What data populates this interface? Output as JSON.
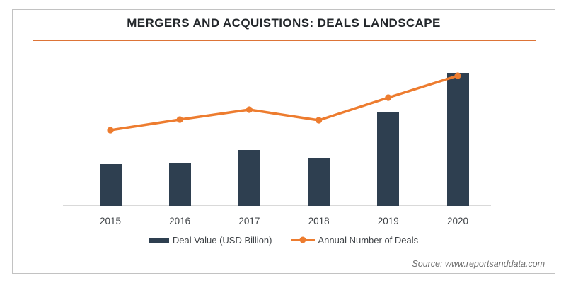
{
  "card": {
    "title": "MERGERS AND ACQUISTIONS: DEALS LANDSCAPE",
    "source": "Source: www.reportsanddata.com"
  },
  "chart_data": {
    "type": "combo",
    "title": "MERGERS AND ACQUISTIONS: DEALS LANDSCAPE",
    "categories": [
      "2015",
      "2016",
      "2017",
      "2018",
      "2019",
      "2020"
    ],
    "series": [
      {
        "name": "Deal Value (USD Billion)",
        "type": "bar",
        "values": [
          59,
          60,
          79,
          67,
          133,
          188
        ]
      },
      {
        "name": "Annual Number of Deals",
        "type": "line",
        "values": [
          107,
          122,
          136,
          121,
          153,
          184
        ]
      }
    ],
    "xlabel": "",
    "ylabel": "",
    "ylim": [
      0,
      200
    ],
    "y_axis_visible": false,
    "gridlines": false,
    "legend_position": "bottom"
  },
  "colors": {
    "bar_fill": "#2e3f50",
    "line_stroke": "#ed7c2f",
    "title_rule": "#dd7437",
    "axis_line": "#d9d9d9",
    "card_border": "#c2c2c2",
    "title_text": "#23272b",
    "label_text": "#3f4347",
    "source_text": "#6d6d6d"
  }
}
